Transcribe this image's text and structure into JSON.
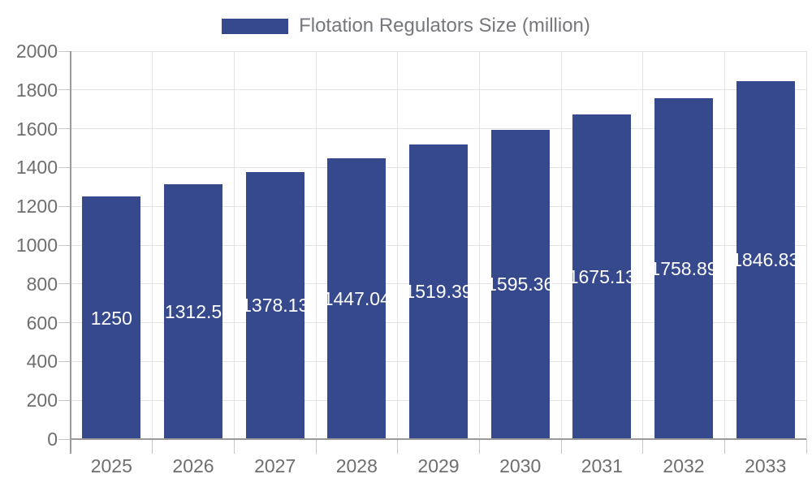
{
  "legend": {
    "label": "Flotation Regulators Size (million)"
  },
  "chart_data": {
    "type": "bar",
    "title": "Flotation Regulators Size (million)",
    "xlabel": "",
    "ylabel": "",
    "categories": [
      "2025",
      "2026",
      "2027",
      "2028",
      "2029",
      "2030",
      "2031",
      "2032",
      "2033"
    ],
    "values": [
      1250,
      1312.5,
      1378.13,
      1447.04,
      1519.39,
      1595.36,
      1675.13,
      1758.89,
      1846.83
    ],
    "value_labels": [
      "1250",
      "1312.5",
      "1378.13",
      "1447.04",
      "1519.39",
      "1595.36",
      "1675.13",
      "1758.89",
      "1846.83"
    ],
    "ylim": [
      0,
      2000
    ],
    "yticks": [
      0,
      200,
      400,
      600,
      800,
      1000,
      1200,
      1400,
      1600,
      1800,
      2000
    ],
    "grid": true,
    "legend_position": "top",
    "value_label_position": "inside-center",
    "colors": {
      "bar": "#36498C",
      "value_label_text": "#ffffff",
      "axis_text": "#6e6e6e",
      "legend_text": "#75777d",
      "gridline": "#e3e3e3",
      "axis_line": "#9a9a9a",
      "tick": "#c6c6c6",
      "background": "#ffffff"
    }
  }
}
